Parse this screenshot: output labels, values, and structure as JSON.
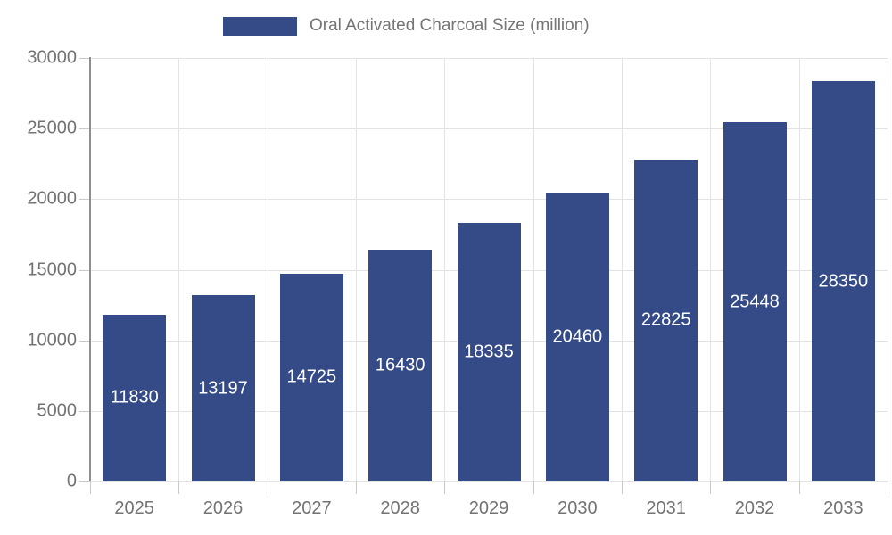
{
  "legend": {
    "label": "Oral Activated Charcoal Size (million)"
  },
  "chart_data": {
    "type": "bar",
    "title": "Oral Activated Charcoal Size (million)",
    "series_name": "Oral Activated Charcoal Size (million)",
    "categories": [
      "2025",
      "2026",
      "2027",
      "2028",
      "2029",
      "2030",
      "2031",
      "2032",
      "2033"
    ],
    "values": [
      11830,
      13197,
      14725,
      16430,
      18335,
      20460,
      22825,
      25448,
      28350
    ],
    "xlabel": "",
    "ylabel": "",
    "ylim": [
      0,
      30000
    ],
    "yticks": [
      0,
      5000,
      10000,
      15000,
      20000,
      25000,
      30000
    ],
    "grid": true,
    "legend_position": "top",
    "value_labels": "inside-center",
    "colors": {
      "bar": "#354B87",
      "value_label": "#FFFFFF",
      "axis_label": "#737373",
      "legend_text": "#757575",
      "gridline": "#E3E3E3",
      "axis_line": "#8F8F8F",
      "tick": "#C9C9C9"
    }
  }
}
